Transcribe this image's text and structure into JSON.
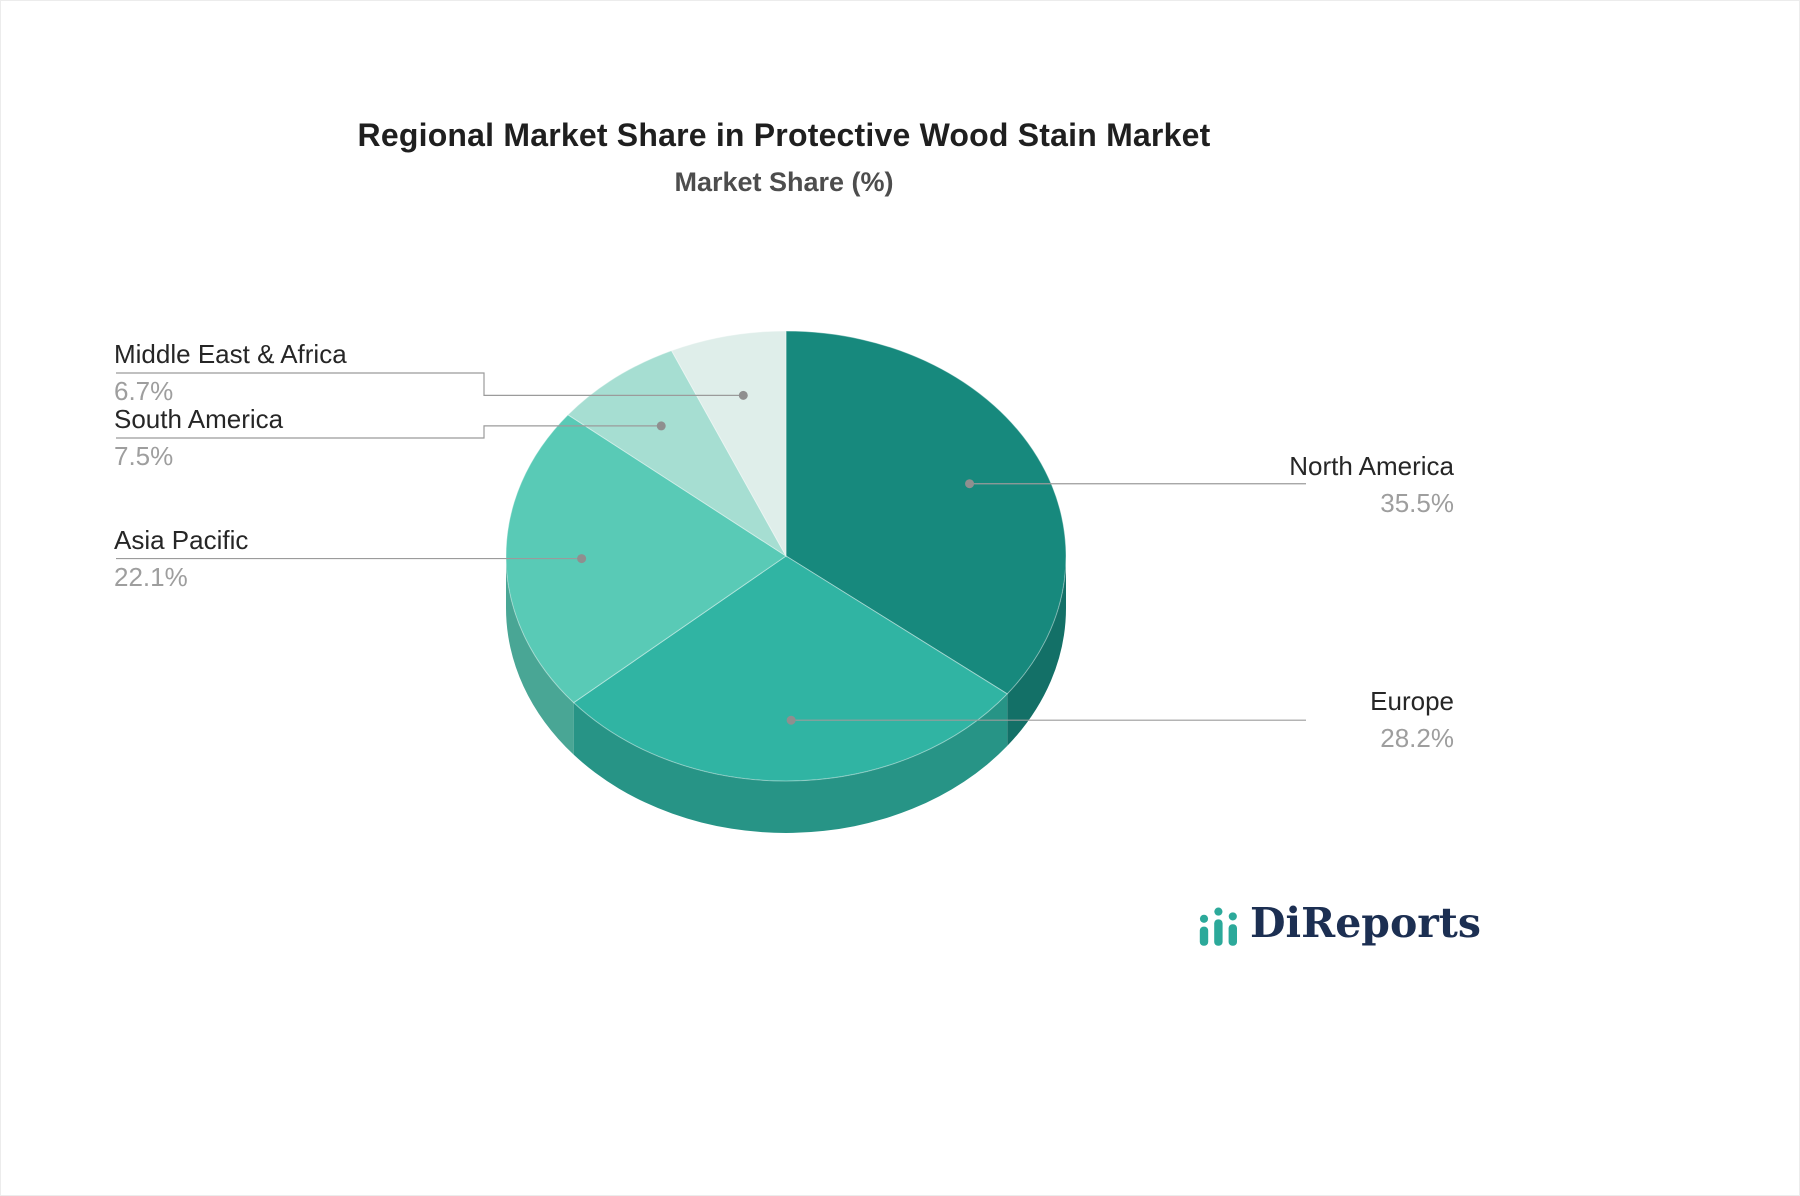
{
  "chart_data": {
    "type": "pie",
    "style": "3d",
    "title": "Regional Market Share in Protective Wood Stain Market",
    "subtitle": "Market Share (%)",
    "categories": [
      "North America",
      "Europe",
      "Asia Pacific",
      "South America",
      "Middle East & Africa"
    ],
    "values": [
      35.5,
      28.2,
      22.1,
      7.5,
      6.7
    ],
    "labels_pct": [
      "35.5%",
      "28.2%",
      "22.1%",
      "7.5%",
      "6.7%"
    ],
    "colors": [
      "#17897d",
      "#30b4a3",
      "#59cab6",
      "#a6ded2",
      "#dfeeea"
    ],
    "legend_position": "none",
    "label_style": "callouts-with-leader-lines",
    "background": "#ffffff"
  },
  "branding": {
    "logo_text": "DiReports",
    "logo_icon": "bar-chart-dots-icon",
    "logo_text_color": "#1c2f52",
    "logo_icon_color": "#2ca99a"
  }
}
